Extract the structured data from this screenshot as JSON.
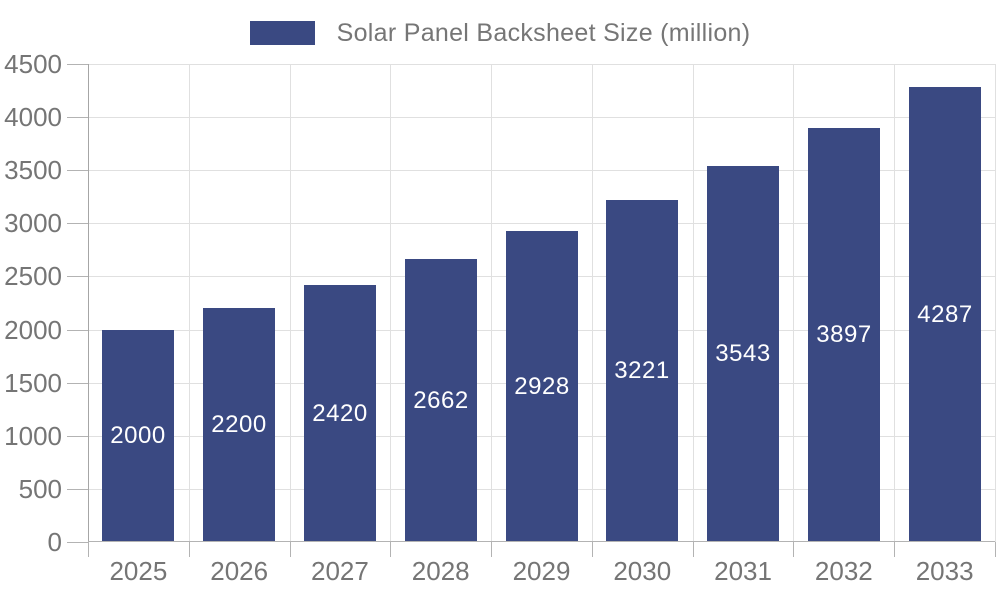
{
  "legend": {
    "label": "Solar Panel Backsheet Size (million)"
  },
  "colors": {
    "background": "#ffffff",
    "bar": "#3A4982",
    "grid": "#e0e0e0",
    "axis_line": "#a6a6a6",
    "x_axis_line": "#b3b3b3",
    "tick": "#b3b3b3",
    "axis_label": "#757575",
    "value_label": "#ffffff",
    "legend_text": "#767676"
  },
  "chart_data": {
    "type": "bar",
    "title": "Solar Panel Backsheet Size (million)",
    "series_name": "Solar Panel Backsheet Size (million)",
    "categories": [
      "2025",
      "2026",
      "2027",
      "2028",
      "2029",
      "2030",
      "2031",
      "2032",
      "2033"
    ],
    "values": [
      2000,
      2200,
      2420,
      2662,
      2928,
      3221,
      3543,
      3897,
      4287
    ],
    "xlabel": "",
    "ylabel": "",
    "ylim": [
      0,
      4500
    ],
    "ytick_interval": 500,
    "ytick_labels": [
      "0",
      "500",
      "1000",
      "1500",
      "2000",
      "2500",
      "3000",
      "3500",
      "4000",
      "4500"
    ],
    "grid": true,
    "legend_position": "top-center",
    "value_label_position": "inside-center"
  }
}
